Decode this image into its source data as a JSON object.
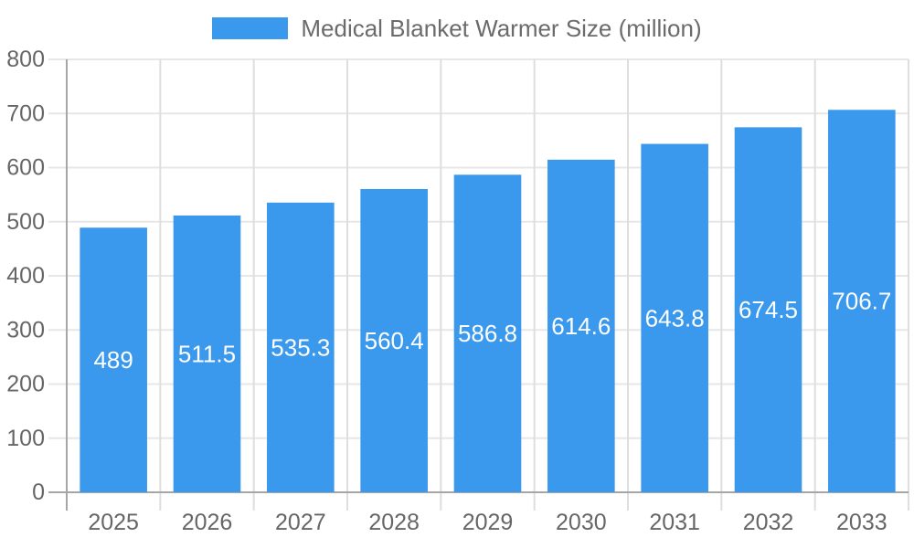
{
  "chart_data": {
    "type": "bar",
    "title": "Medical Blanket Warmer Size (million)",
    "categories": [
      "2025",
      "2026",
      "2027",
      "2028",
      "2029",
      "2030",
      "2031",
      "2032",
      "2033"
    ],
    "values": [
      489,
      511.5,
      535.3,
      560.4,
      586.8,
      614.6,
      643.8,
      674.5,
      706.7
    ],
    "value_labels": [
      "489",
      "511.5",
      "535.3",
      "560.4",
      "586.8",
      "614.6",
      "643.8",
      "674.5",
      "706.7"
    ],
    "xlabel": "",
    "ylabel": "",
    "ylim": [
      0,
      800
    ],
    "ytick_interval": 100,
    "ytick_labels": [
      "0",
      "100",
      "200",
      "300",
      "400",
      "500",
      "600",
      "700",
      "800"
    ],
    "grid": true,
    "legend_position": "top",
    "colors": {
      "bar": "#3a99ec",
      "bar_label": "#ffffff",
      "axis_line": "#a6a6a6",
      "grid_h": "#e7e7e7",
      "grid_v": "#dedede",
      "tick_text": "#666666",
      "title_text": "#6b6b6b",
      "background": "#ffffff"
    }
  }
}
